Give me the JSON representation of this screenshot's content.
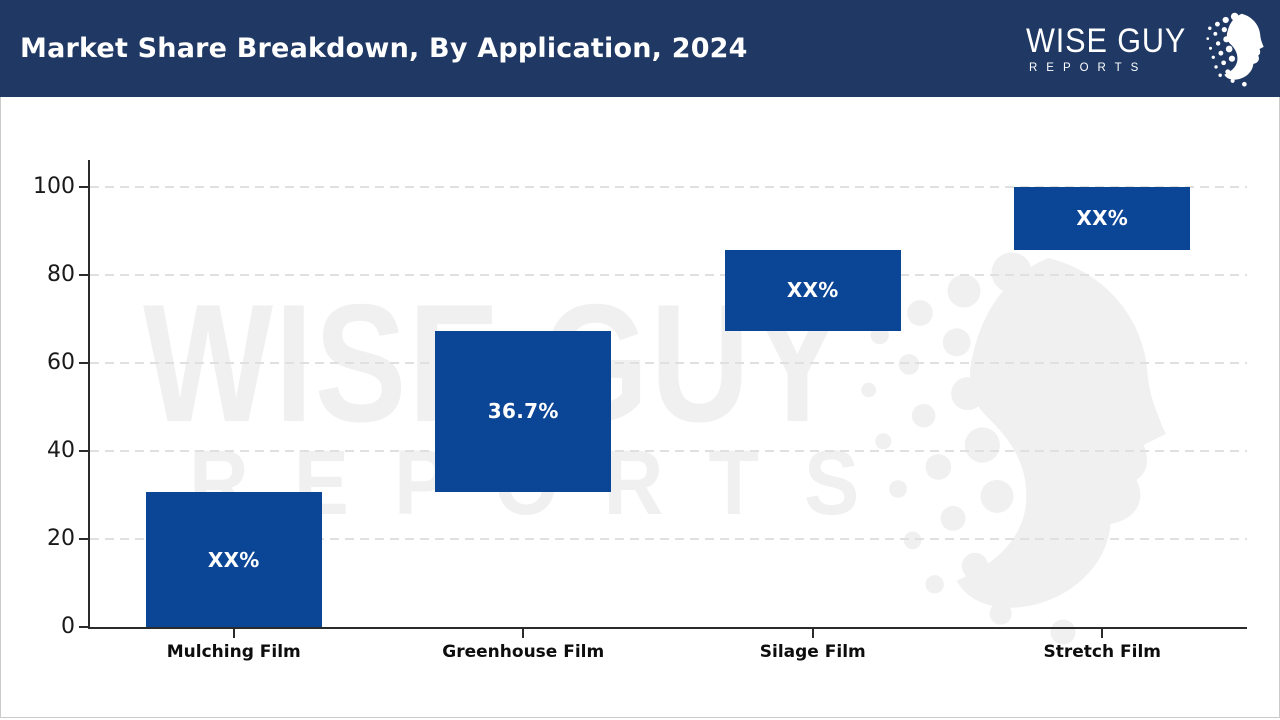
{
  "header": {
    "title": "Market Share Breakdown, By Application, 2024",
    "brand": {
      "line1": "WISE GUY",
      "line2": "REPORTS"
    }
  },
  "watermark": {
    "line1": "WISE GUY",
    "line2": "REPORTS"
  },
  "icons": {
    "brand_head": "dotted-head-profile-icon"
  },
  "colors": {
    "header_bg": "#1f3864",
    "bar_fill": "#0b4596",
    "bar_label_text": "#ffffff",
    "gridline": "#e0e0e0",
    "axis": "#2b2b2b",
    "tick_label": "#1a1a1a",
    "watermark": "#f0f0f1",
    "panel_border": "#cbcbcb"
  },
  "chart_data": {
    "type": "bar",
    "subtype": "floating-segment-waterfall",
    "title": "Market Share Breakdown, By Application, 2024",
    "categories": [
      "Mulching Film",
      "Greenhouse Film",
      "Silage Film",
      "Stretch Film"
    ],
    "series": [
      {
        "name": "Market Share %",
        "segments": [
          {
            "category": "Mulching Film",
            "from": 0,
            "to": 30.6
          },
          {
            "category": "Greenhouse Film",
            "from": 30.6,
            "to": 67.3
          },
          {
            "category": "Silage Film",
            "from": 67.3,
            "to": 85.5
          },
          {
            "category": "Stretch Film",
            "from": 85.5,
            "to": 100
          }
        ]
      }
    ],
    "bar_labels": [
      "XX%",
      "36.7%",
      "XX%",
      "XX%"
    ],
    "xlabel": "",
    "ylabel": "",
    "ylim": [
      0,
      100
    ],
    "yticks": [
      0,
      20,
      40,
      60,
      80,
      100
    ],
    "grid": "horizontal-dashed",
    "legend": "none"
  }
}
